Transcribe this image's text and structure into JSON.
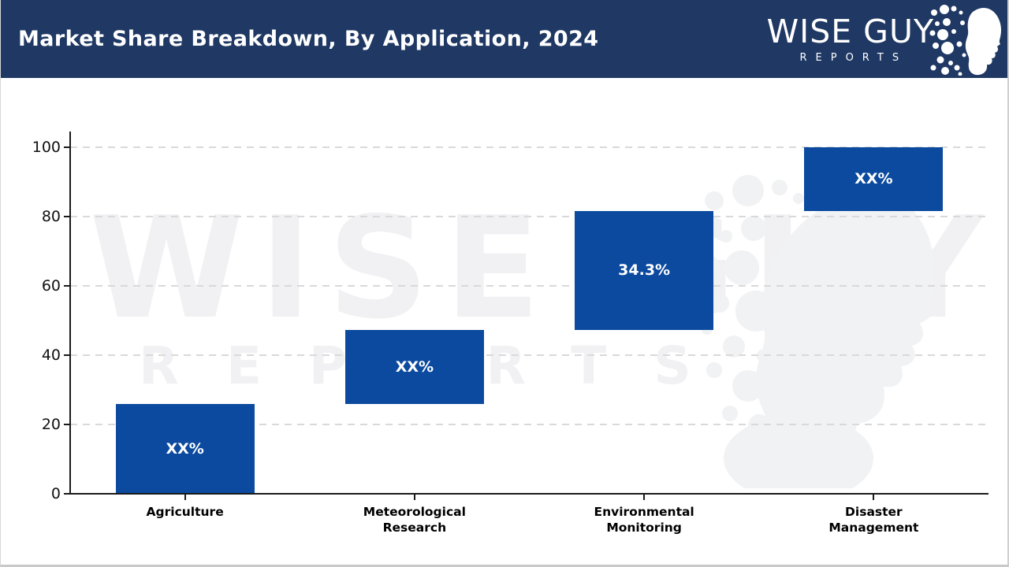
{
  "header": {
    "title": "Market Share Breakdown, By Application, 2024",
    "background_color": "#1f3864",
    "logo": {
      "line1": "WISE GUY",
      "line2": "REPORTS",
      "icon": "dotted-head-profile"
    }
  },
  "watermark": {
    "line1": "WISE GUY",
    "line2": "REPORTS",
    "icon": "dotted-head-profile",
    "color": "#f1f1f3"
  },
  "chart_data": {
    "type": "bar",
    "subtype": "floating-waterfall-bars",
    "title": "Market Share Breakdown, By Application, 2024",
    "categories": [
      "Agriculture",
      "Meteorological Research",
      "Environmental Monitoring",
      "Disaster Management"
    ],
    "category_lines": [
      [
        "Agriculture"
      ],
      [
        "Meteorological",
        "Research"
      ],
      [
        "Environmental",
        "Monitoring"
      ],
      [
        "Disaster",
        "Management"
      ]
    ],
    "segments": [
      [
        0,
        25.8
      ],
      [
        25.8,
        47.3
      ],
      [
        47.3,
        81.6
      ],
      [
        81.6,
        100
      ]
    ],
    "values": [
      25.8,
      21.5,
      34.3,
      18.4
    ],
    "bar_labels": [
      "XX%",
      "XX%",
      "34.3%",
      "XX%"
    ],
    "ylim": [
      0,
      100
    ],
    "yticks": [
      0,
      20,
      40,
      60,
      80,
      100
    ],
    "grid": "dashed-horizontal",
    "legend": "none",
    "bar_color": "#0b4a9f",
    "bar_label_color": "#ffffff",
    "axis_color": "#1a1a1a",
    "gridline_color": "#d9d9d9"
  }
}
